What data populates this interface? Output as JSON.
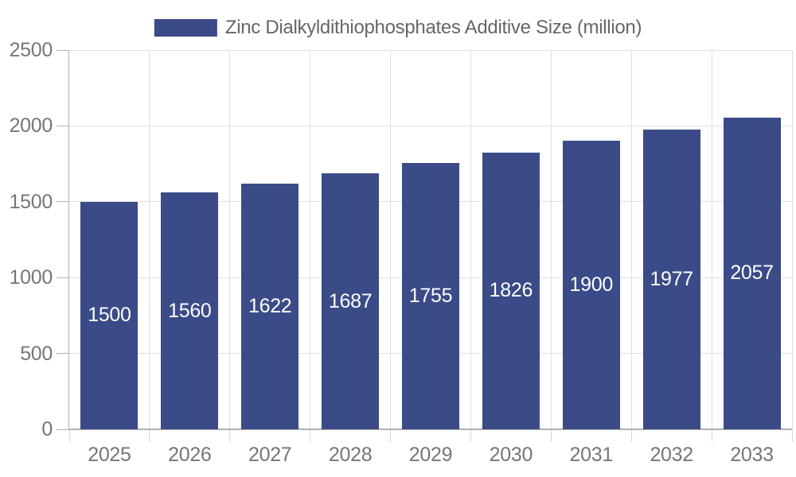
{
  "chart_data": {
    "type": "bar",
    "title": "Zinc Dialkyldithiophosphates Additive Size (million)",
    "legend_label": "Zinc Dialkyldithiophosphates Additive Size (million)",
    "legend_position": "top",
    "categories": [
      "2025",
      "2026",
      "2027",
      "2028",
      "2029",
      "2030",
      "2031",
      "2032",
      "2033"
    ],
    "values": [
      1500,
      1560,
      1622,
      1687,
      1755,
      1826,
      1900,
      1977,
      2057
    ],
    "xlabel": "",
    "ylabel": "",
    "ylim": [
      0,
      2500
    ],
    "yticks": [
      0,
      500,
      1000,
      1500,
      2000,
      2500
    ],
    "grid": true,
    "bar_labels_visible": true,
    "bar_label_position": "center"
  },
  "colors": {
    "bar": "#3A4B87",
    "bar_label": "#ffffff",
    "grid": "#e0e0e0",
    "axis": "#b0b0b0",
    "x_tick": "#d6d6d6",
    "tick_label": "#767676",
    "legend_text": "#666666",
    "background": "#ffffff"
  }
}
